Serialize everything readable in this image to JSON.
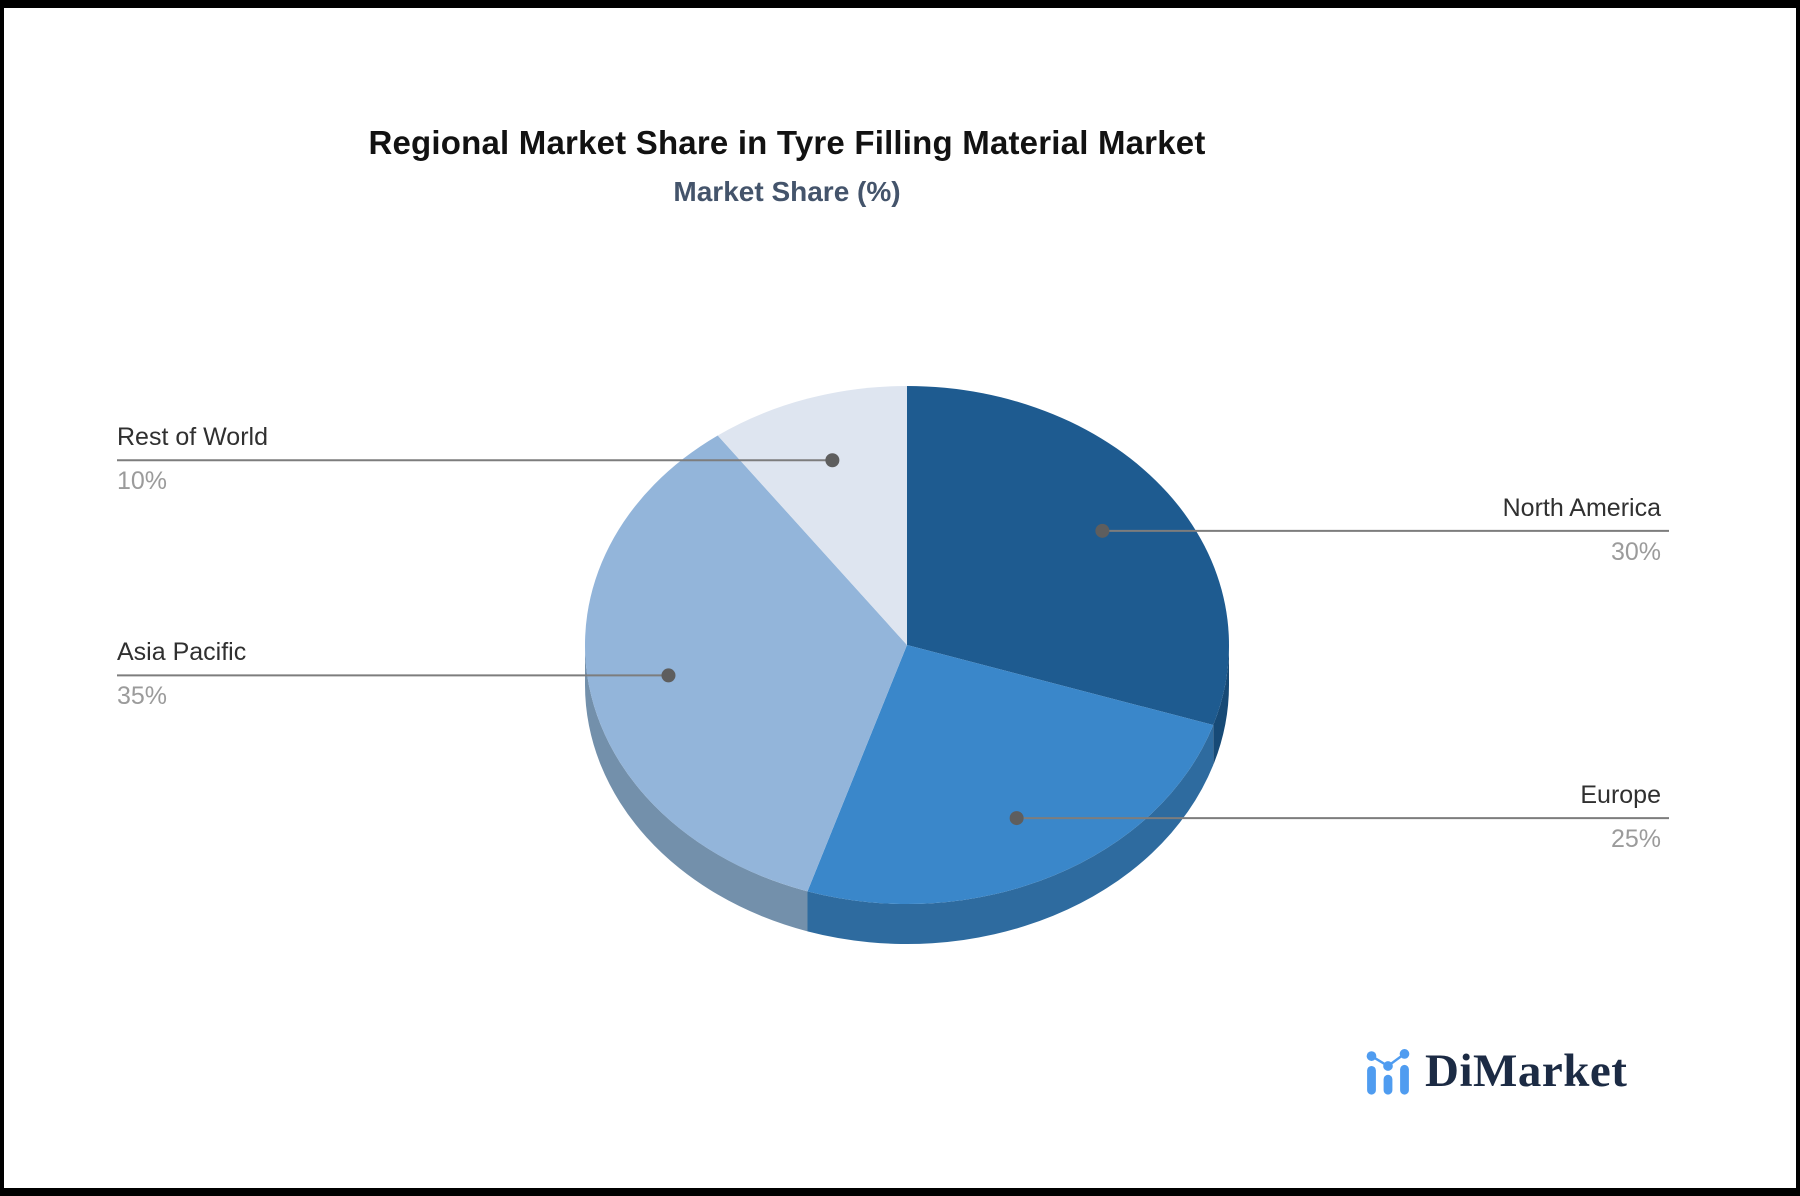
{
  "header": {
    "title": "Regional Market Share in Tyre Filling Material Market",
    "subtitle": "Market Share (%)",
    "title_color": "#121212",
    "subtitle_color": "#44546b"
  },
  "chart_data": {
    "type": "pie",
    "title": "Regional Market Share in Tyre Filling Material Market",
    "subtitle": "Market Share (%)",
    "unit": "%",
    "effect_3d": true,
    "direction": "clockwise",
    "start_angle_deg": 0,
    "legend_position": "callout-labels",
    "labels": [
      "North America",
      "Europe",
      "Asia Pacific",
      "Rest of World"
    ],
    "values": [
      30,
      25,
      35,
      10
    ],
    "display_values": [
      "30%",
      "25%",
      "35%",
      "10%"
    ],
    "slice_colors": [
      "#1e5b90",
      "#3a87ca",
      "#93b5da",
      "#dee5f0"
    ],
    "slice_side_colors": [
      "#174a76",
      "#2e6b9f",
      "#7390ab",
      "#b3c1d4"
    ]
  },
  "styles": {
    "label_color": "#303030",
    "value_color": "#9b9b9b",
    "leader_line_color": "#7d7d7d",
    "leader_dot_color": "#5e5e5e",
    "page_background": "#ffffff",
    "frame_color": "#000000"
  },
  "logo": {
    "text": "DiMarket",
    "text_color": "#1c2b44",
    "icon_color": "#4f9cf0",
    "icon_name": "bar-line-chart-icon"
  }
}
